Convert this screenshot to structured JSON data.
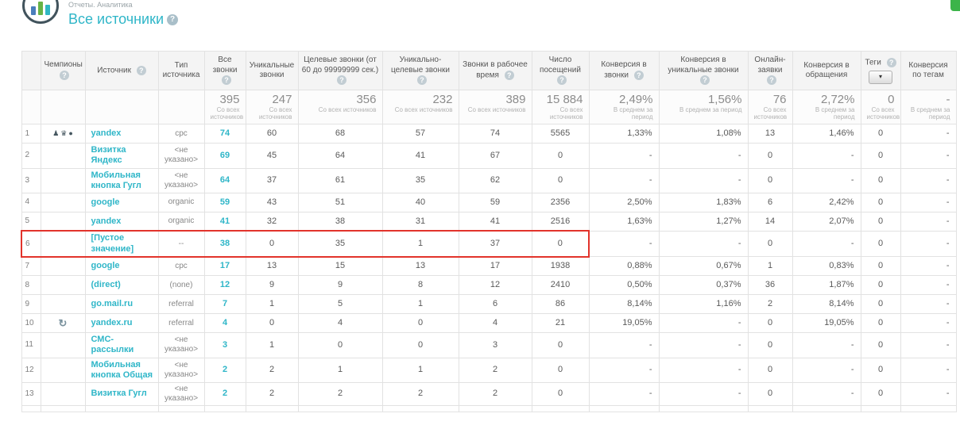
{
  "page": {
    "breadcrumb": "Отчеты. Аналитика",
    "title": "Все источники"
  },
  "icons": {
    "help": "?",
    "tags_dropdown": "▾",
    "champion_glyphs": {
      "bell": "♟",
      "cup": "♛",
      "medal": "●",
      "refresh": "↻"
    }
  },
  "table": {
    "headers": {
      "champions": "Чемпионы",
      "source": "Источник",
      "source_type": "Тип источника",
      "all_calls": "Все звонки",
      "unique_calls": "Уникальные звонки",
      "target_calls": "Целевые звонки (от 60 до 99999999 сек.)",
      "unique_target_calls": "Уникально-целевые звонки",
      "work_time_calls": "Звонки в рабочее время",
      "visits": "Число посещений",
      "conversion_calls": "Конверсия в звонки",
      "conversion_unique_calls": "Конверсия в уникальные звонки",
      "online_requests": "Онлайн-заявки",
      "conversion_requests": "Конверсия в обращения",
      "tags": "Теги",
      "conversion_tags": "Конверсия по тегам"
    },
    "summary": {
      "values": [
        "395",
        "247",
        "356",
        "232",
        "389",
        "15 884",
        "2,49%",
        "1,56%",
        "76",
        "2,72%",
        "0",
        "-"
      ],
      "captions": [
        "Со всех источников",
        "Со всех источников",
        "Со всех источников",
        "Со всех источников",
        "Со всех источников",
        "Со всех источников",
        "В среднем за период",
        "В среднем за период",
        "Со всех источников",
        "В среднем за период",
        "Со всех источников",
        "В среднем за период"
      ]
    },
    "rows": [
      {
        "num": "1",
        "champions": [
          "bell",
          "cup",
          "medal"
        ],
        "source": "yandex",
        "type": "cpc",
        "values": [
          "74",
          "60",
          "68",
          "57",
          "74",
          "5565",
          "1,33%",
          "1,08%",
          "13",
          "1,46%",
          "0",
          "-"
        ],
        "highlighted": false
      },
      {
        "num": "2",
        "champions": [],
        "source": "Визитка Яндекс",
        "type": "<не указано>",
        "values": [
          "69",
          "45",
          "64",
          "41",
          "67",
          "0",
          "-",
          "-",
          "0",
          "-",
          "0",
          "-"
        ],
        "highlighted": false
      },
      {
        "num": "3",
        "champions": [],
        "source": "Мобильная кнопка Гугл",
        "type": "<не указано>",
        "values": [
          "64",
          "37",
          "61",
          "35",
          "62",
          "0",
          "-",
          "-",
          "0",
          "-",
          "0",
          "-"
        ],
        "highlighted": false
      },
      {
        "num": "4",
        "champions": [],
        "source": "google",
        "type": "organic",
        "values": [
          "59",
          "43",
          "51",
          "40",
          "59",
          "2356",
          "2,50%",
          "1,83%",
          "6",
          "2,42%",
          "0",
          "-"
        ],
        "highlighted": false
      },
      {
        "num": "5",
        "champions": [],
        "source": "yandex",
        "type": "organic",
        "values": [
          "41",
          "32",
          "38",
          "31",
          "41",
          "2516",
          "1,63%",
          "1,27%",
          "14",
          "2,07%",
          "0",
          "-"
        ],
        "highlighted": false
      },
      {
        "num": "6",
        "champions": [],
        "source": "[Пустое значение]",
        "type": "--",
        "values": [
          "38",
          "0",
          "35",
          "1",
          "37",
          "0",
          "-",
          "-",
          "0",
          "-",
          "0",
          "-"
        ],
        "highlighted": true
      },
      {
        "num": "7",
        "champions": [],
        "source": "google",
        "type": "cpc",
        "values": [
          "17",
          "13",
          "15",
          "13",
          "17",
          "1938",
          "0,88%",
          "0,67%",
          "1",
          "0,83%",
          "0",
          "-"
        ],
        "highlighted": false
      },
      {
        "num": "8",
        "champions": [],
        "source": "(direct)",
        "type": "(none)",
        "values": [
          "12",
          "9",
          "9",
          "8",
          "12",
          "2410",
          "0,50%",
          "0,37%",
          "36",
          "1,87%",
          "0",
          "-"
        ],
        "highlighted": false
      },
      {
        "num": "9",
        "champions": [],
        "source": "go.mail.ru",
        "type": "referral",
        "values": [
          "7",
          "1",
          "5",
          "1",
          "6",
          "86",
          "8,14%",
          "1,16%",
          "2",
          "8,14%",
          "0",
          "-"
        ],
        "highlighted": false
      },
      {
        "num": "10",
        "champions": [
          "refresh"
        ],
        "source": "yandex.ru",
        "type": "referral",
        "values": [
          "4",
          "0",
          "4",
          "0",
          "4",
          "21",
          "19,05%",
          "-",
          "0",
          "19,05%",
          "0",
          "-"
        ],
        "highlighted": false
      },
      {
        "num": "11",
        "champions": [],
        "source": "СМС-рассылки",
        "type": "<не указано>",
        "values": [
          "3",
          "1",
          "0",
          "0",
          "3",
          "0",
          "-",
          "-",
          "0",
          "-",
          "0",
          "-"
        ],
        "highlighted": false
      },
      {
        "num": "12",
        "champions": [],
        "source": "Мобильная кнопка Общая",
        "type": "<не указано>",
        "values": [
          "2",
          "2",
          "1",
          "1",
          "2",
          "0",
          "-",
          "-",
          "0",
          "-",
          "0",
          "-"
        ],
        "highlighted": false
      },
      {
        "num": "13",
        "champions": [],
        "source": "Визитка Гугл",
        "type": "<не указано>",
        "values": [
          "2",
          "2",
          "2",
          "2",
          "2",
          "0",
          "-",
          "-",
          "0",
          "-",
          "0",
          "-"
        ],
        "highlighted": false
      }
    ]
  }
}
